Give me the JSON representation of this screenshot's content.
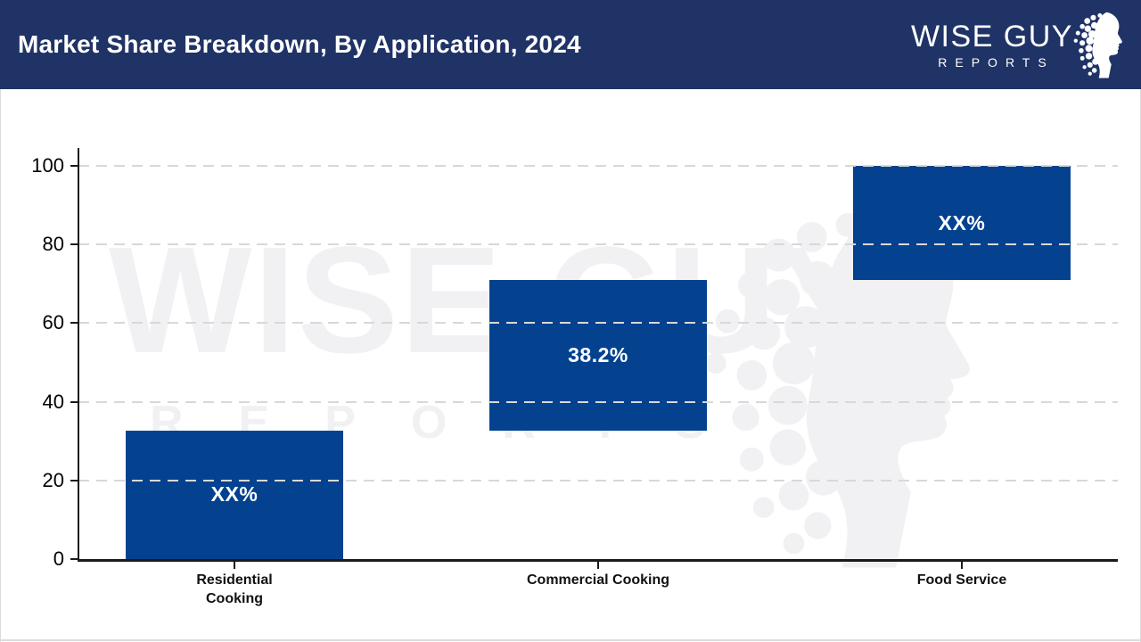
{
  "header": {
    "title": "Market Share Breakdown, By Application, 2024",
    "logo": {
      "wordmark": "WISE GUY",
      "subtext": "REPORTS"
    }
  },
  "watermark": {
    "line1": "WISE GUY",
    "line2": "REPORTS"
  },
  "chart_data": {
    "type": "bar",
    "subtype": "stacked-waterfall",
    "title": "Market Share Breakdown, By Application, 2024",
    "categories": [
      "Residential\nCooking",
      "Commercial Cooking",
      "Food Service"
    ],
    "segments": [
      {
        "category": "Residential Cooking",
        "start": 0,
        "end": 32.7,
        "value_label": "XX%",
        "value_estimate": 32.7
      },
      {
        "category": "Commercial Cooking",
        "start": 32.7,
        "end": 70.9,
        "value_label": "38.2%",
        "value_estimate": 38.2
      },
      {
        "category": "Food Service",
        "start": 70.9,
        "end": 100,
        "value_label": "XX%",
        "value_estimate": 29.1
      }
    ],
    "ylim": [
      0,
      100
    ],
    "yticks": [
      0,
      20,
      40,
      60,
      80,
      100
    ],
    "xlabel": "",
    "ylabel": "",
    "grid": "horizontal-dashed",
    "legend": "none"
  },
  "colors": {
    "header_bg": "#203366",
    "title": "#FFFFFF",
    "bar": "#04428F",
    "bar_label": "#FFFFFF",
    "axis": "#1A1A1A",
    "grid": "#D8D8D8",
    "watermark": "#F1F1F3"
  }
}
